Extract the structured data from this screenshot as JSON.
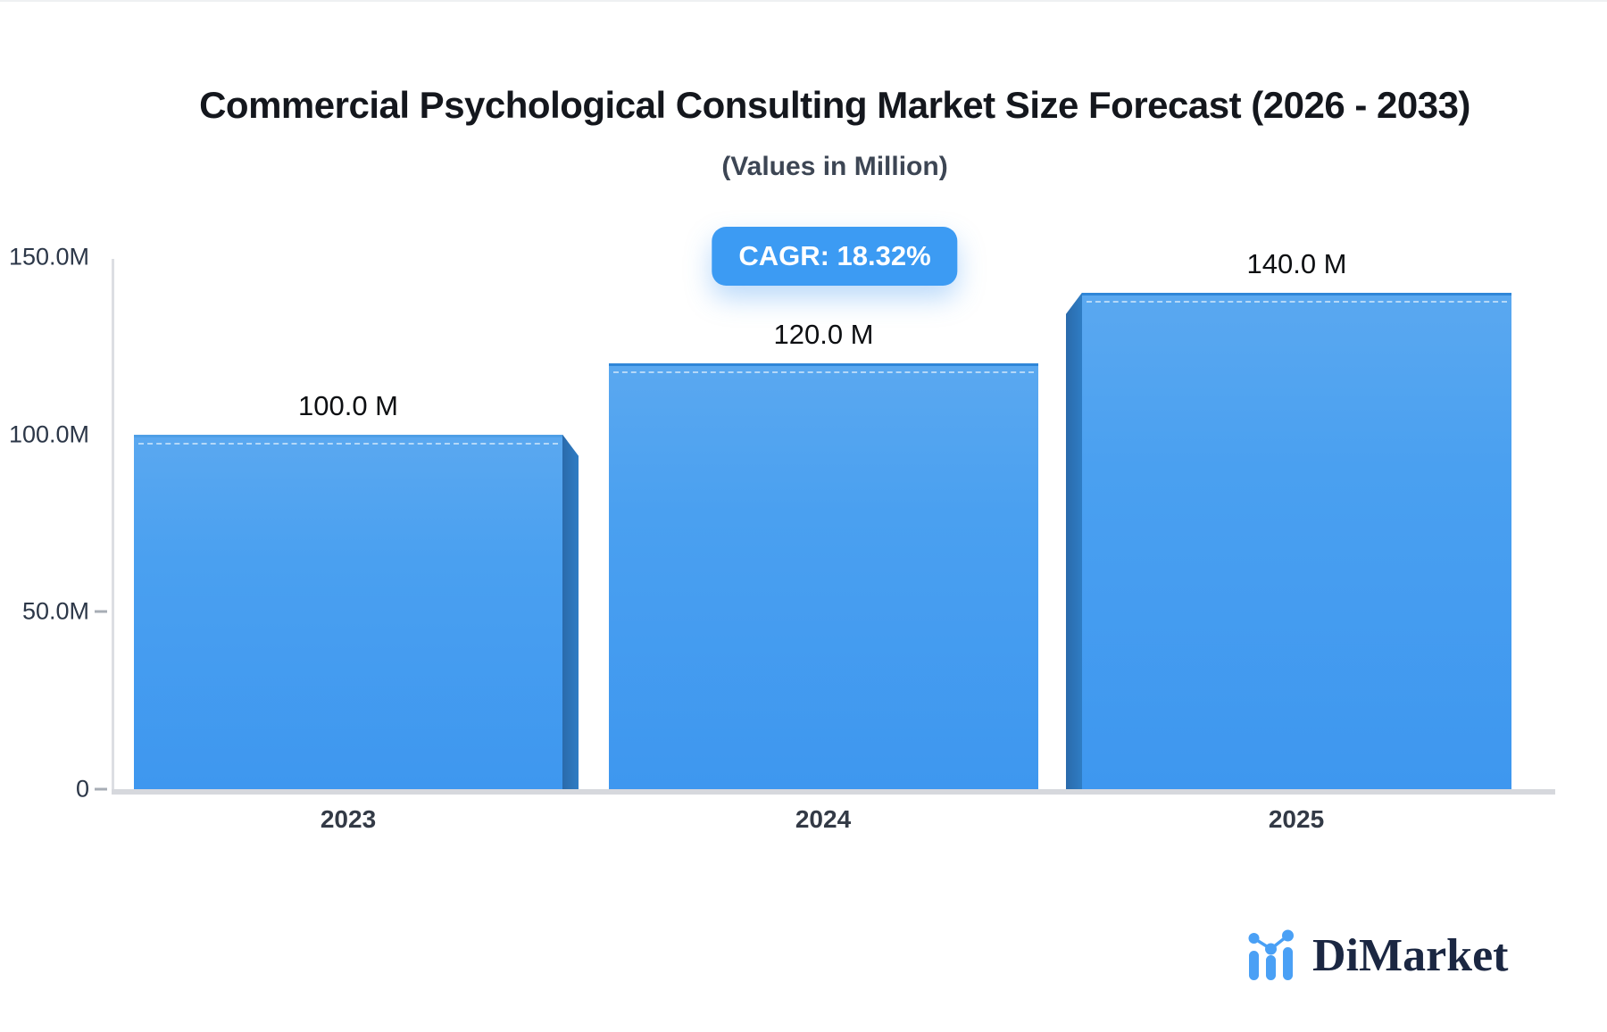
{
  "header": {
    "title": "Commercial Psychological Consulting Market Size Forecast (2026 - 2033)",
    "subtitle": "(Values in Million)",
    "cagr_badge": "CAGR: 18.32%"
  },
  "chart_data": {
    "type": "bar",
    "title": "Commercial Psychological Consulting Market Size Forecast (2026 - 2033)",
    "subtitle": "(Values in Million)",
    "categories": [
      "2023",
      "2024",
      "2025"
    ],
    "values": [
      100.0,
      120.0,
      140.0
    ],
    "bar_labels": [
      "100.0 M",
      "120.0 M",
      "140.0 M"
    ],
    "unit": "Million",
    "xlabel": "",
    "ylabel": "",
    "ylim": [
      0,
      150
    ],
    "yticks": [
      {
        "value": 0,
        "label": "0"
      },
      {
        "value": 50,
        "label": "50.0M"
      },
      {
        "value": 100,
        "label": "100.0M"
      },
      {
        "value": 150,
        "label": "150.0M"
      }
    ],
    "grid": false,
    "legend": null,
    "annotations": [
      "CAGR: 18.32%"
    ]
  },
  "colors": {
    "bar_fill_top": "#5aa8f0",
    "bar_fill_bottom": "#3e97ef",
    "bar_side_face": "#2d74b5",
    "badge_background": "#3c9bf3",
    "badge_text": "#ffffff",
    "axis_line": "#d8dade",
    "title_text": "#14171d",
    "subtitle_text": "#3d4654",
    "logo_navy": "#1b2742",
    "logo_blue": "#4aa0f5"
  },
  "logo": {
    "text": "DiMarket",
    "icon": "bar-chart-trend-icon"
  }
}
